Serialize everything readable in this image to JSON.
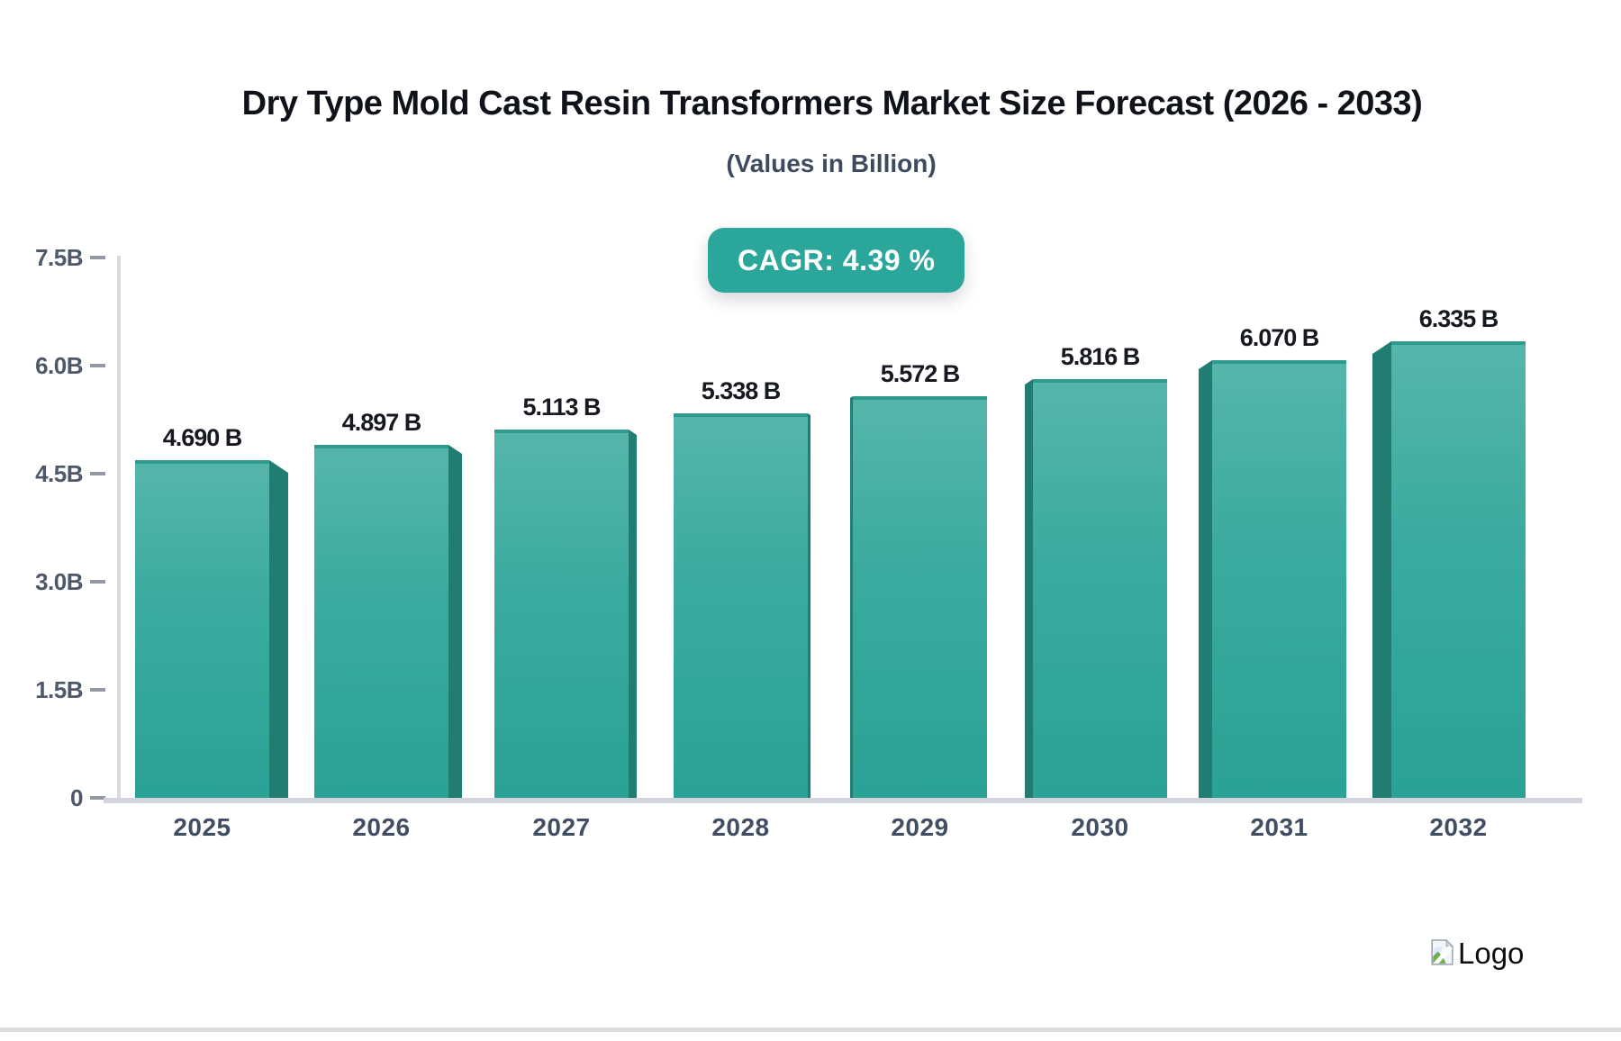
{
  "title": "Dry Type Mold Cast Resin Transformers Market Size Forecast (2026 - 2033)",
  "subtitle": "(Values in Billion)",
  "badge": {
    "label": "CAGR: 4.39 %"
  },
  "logo": {
    "alt_text": "Logo",
    "icon": "broken-image-icon"
  },
  "colors": {
    "accent_teal": "#2aa69a",
    "bar_face_top": "#55b5ab",
    "bar_face_bottom": "#2aa295",
    "bar_side": "#217c71",
    "axis_line": "#d8dade",
    "baseline": "#d2d5db",
    "tick": "#9299a4",
    "y_label_text": "#4e5869",
    "x_label_text": "#414d62",
    "value_label_text": "#16191f",
    "title_text": "#0f1319",
    "subtitle_text": "#3e4b5e"
  },
  "chart_data": {
    "type": "bar",
    "title": "Dry Type Mold Cast Resin Transformers Market Size Forecast (2026 - 2033)",
    "subtitle": "(Values in Billion)",
    "cagr_label": "CAGR: 4.39 %",
    "categories": [
      "2025",
      "2026",
      "2027",
      "2028",
      "2029",
      "2030",
      "2031",
      "2032"
    ],
    "values": [
      4.69,
      4.897,
      5.113,
      5.338,
      5.572,
      5.816,
      6.07,
      6.335
    ],
    "bar_labels": [
      "4.690 B",
      "4.897 B",
      "5.113 B",
      "5.338 B",
      "5.572 B",
      "5.816 B",
      "6.070 B",
      "6.335 B"
    ],
    "xlabel": "",
    "ylabel": "",
    "ylim": [
      0,
      7.5
    ],
    "y_ticks": [
      {
        "label": "7.5B",
        "value": 7.5
      },
      {
        "label": "6.0B",
        "value": 6.0
      },
      {
        "label": "4.5B",
        "value": 4.5
      },
      {
        "label": "3.0B",
        "value": 3.0
      },
      {
        "label": "1.5B",
        "value": 1.5
      },
      {
        "label": "0",
        "value": 0
      }
    ],
    "grid": false,
    "legend": false,
    "bar_style": "3d-extruded-teal-gradient"
  }
}
